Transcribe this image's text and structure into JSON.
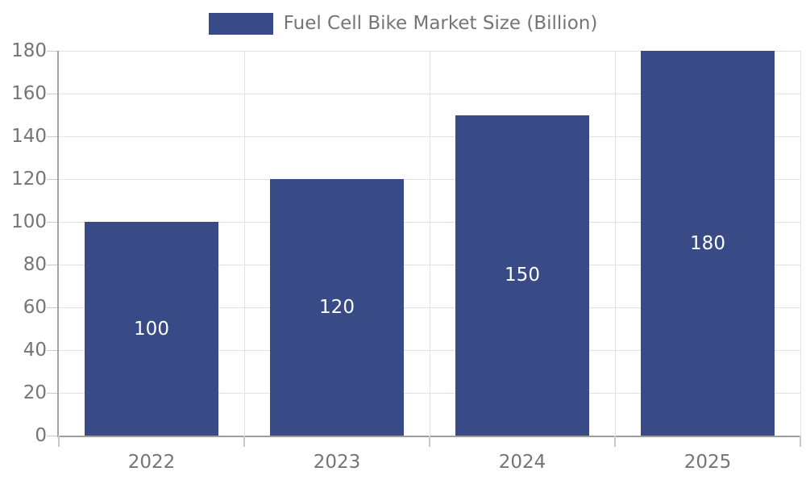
{
  "chart_data": {
    "type": "bar",
    "title": "Fuel Cell Bike Market Size (Billion)",
    "categories": [
      "2022",
      "2023",
      "2024",
      "2025"
    ],
    "series": [
      {
        "name": "Fuel Cell Bike Market Size (Billion)",
        "values": [
          100,
          120,
          150,
          180
        ]
      }
    ],
    "xlabel": "",
    "ylabel": "",
    "ylim": [
      0,
      180
    ],
    "ytick_step": 20,
    "yticks": [
      0,
      20,
      40,
      60,
      80,
      100,
      120,
      140,
      160,
      180
    ],
    "grid": true,
    "legend_position": "top-center",
    "bar_label_position": "inside-center",
    "colors": {
      "bar": "#394B87",
      "bar_label": "#FFFFFF",
      "axis": "#9E9E9E",
      "grid": "#E2E2E2",
      "tick": "#C9C9C9",
      "tick_text": "#757575",
      "legend_text": "#757575",
      "background": "#FFFFFF"
    }
  }
}
